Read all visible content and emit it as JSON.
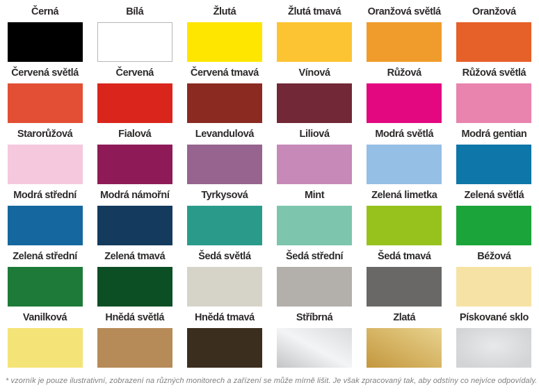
{
  "chart_data": {
    "type": "table",
    "title": "",
    "layout": {
      "columns": 6,
      "rows": 6,
      "legend_position": "labels-above-swatches",
      "grid": false
    },
    "swatches": [
      {
        "label": "Černá",
        "color": "#000000",
        "finish": "solid"
      },
      {
        "label": "Bílá",
        "color": "#ffffff",
        "finish": "solid",
        "border_color": "#b6b6b6"
      },
      {
        "label": "Žlutá",
        "color": "#fee600",
        "finish": "solid"
      },
      {
        "label": "Žlutá tmavá",
        "color": "#fcc433",
        "finish": "solid"
      },
      {
        "label": "Oranžová světlá",
        "color": "#f09c2c",
        "finish": "solid"
      },
      {
        "label": "Oranžová",
        "color": "#e6602a",
        "finish": "solid"
      },
      {
        "label": "Červená světlá",
        "color": "#e24f35",
        "finish": "solid"
      },
      {
        "label": "Červená",
        "color": "#da251d",
        "finish": "solid"
      },
      {
        "label": "Červená tmavá",
        "color": "#8b2a21",
        "finish": "solid"
      },
      {
        "label": "Vínová",
        "color": "#722837",
        "finish": "solid"
      },
      {
        "label": "Růžová",
        "color": "#e30880",
        "finish": "solid"
      },
      {
        "label": "Růžová světlá",
        "color": "#e884ae",
        "finish": "solid"
      },
      {
        "label": "Starorůžová",
        "color": "#f5c8de",
        "finish": "solid"
      },
      {
        "label": "Fialová",
        "color": "#8e1b57",
        "finish": "solid"
      },
      {
        "label": "Levandulová",
        "color": "#96648e",
        "finish": "solid"
      },
      {
        "label": "Liliová",
        "color": "#c689b8",
        "finish": "solid"
      },
      {
        "label": "Modrá světlá",
        "color": "#95bfe5",
        "finish": "solid"
      },
      {
        "label": "Modrá gentian",
        "color": "#0e76a8",
        "finish": "solid"
      },
      {
        "label": "Modrá střední",
        "color": "#15689f",
        "finish": "solid"
      },
      {
        "label": "Modrá námořní",
        "color": "#143a5d",
        "finish": "solid"
      },
      {
        "label": "Tyrkysová",
        "color": "#2a9b8b",
        "finish": "solid"
      },
      {
        "label": "Mint",
        "color": "#7ec5ae",
        "finish": "solid"
      },
      {
        "label": "Zelená limetka",
        "color": "#97c21e",
        "finish": "solid"
      },
      {
        "label": "Zelená světlá",
        "color": "#1ba43a",
        "finish": "solid"
      },
      {
        "label": "Zelená střední",
        "color": "#1d7a38",
        "finish": "solid"
      },
      {
        "label": "Zelená tmavá",
        "color": "#0d4f24",
        "finish": "solid"
      },
      {
        "label": "Šedá světlá",
        "color": "#d6d3c9",
        "finish": "solid"
      },
      {
        "label": "Šedá střední",
        "color": "#b3afab",
        "finish": "solid"
      },
      {
        "label": "Šedá tmavá",
        "color": "#6a6867",
        "finish": "solid"
      },
      {
        "label": "Béžová",
        "color": "#f6e2a4",
        "finish": "solid"
      },
      {
        "label": "Vanilková",
        "color": "#f4e478",
        "finish": "solid"
      },
      {
        "label": "Hnědá světlá",
        "color": "#b68b58",
        "finish": "solid"
      },
      {
        "label": "Hnědá tmavá",
        "color": "#3b2e1e",
        "finish": "solid"
      },
      {
        "label": "Stříbrná",
        "finish": "metallic-linear",
        "color_from": "#c2c4c6",
        "color_mid": "#f2f4f6",
        "color_to": "#d9dbdd"
      },
      {
        "label": "Zlatá",
        "finish": "metallic-linear",
        "color_from": "#c3973f",
        "color_mid": "#d6b565",
        "color_to": "#e8d28e"
      },
      {
        "label": "Pískované sklo",
        "finish": "frosted-radial",
        "color_center": "#e7e9eb",
        "color_edge": "#d2d4d6"
      }
    ]
  },
  "footnote": "* vzorník je pouze ilustrativní, zobrazení na různých monitorech a zařízení se může mírně lišit. Je však zpracovaný tak, aby odstíny co nejvíce odpovídaly."
}
